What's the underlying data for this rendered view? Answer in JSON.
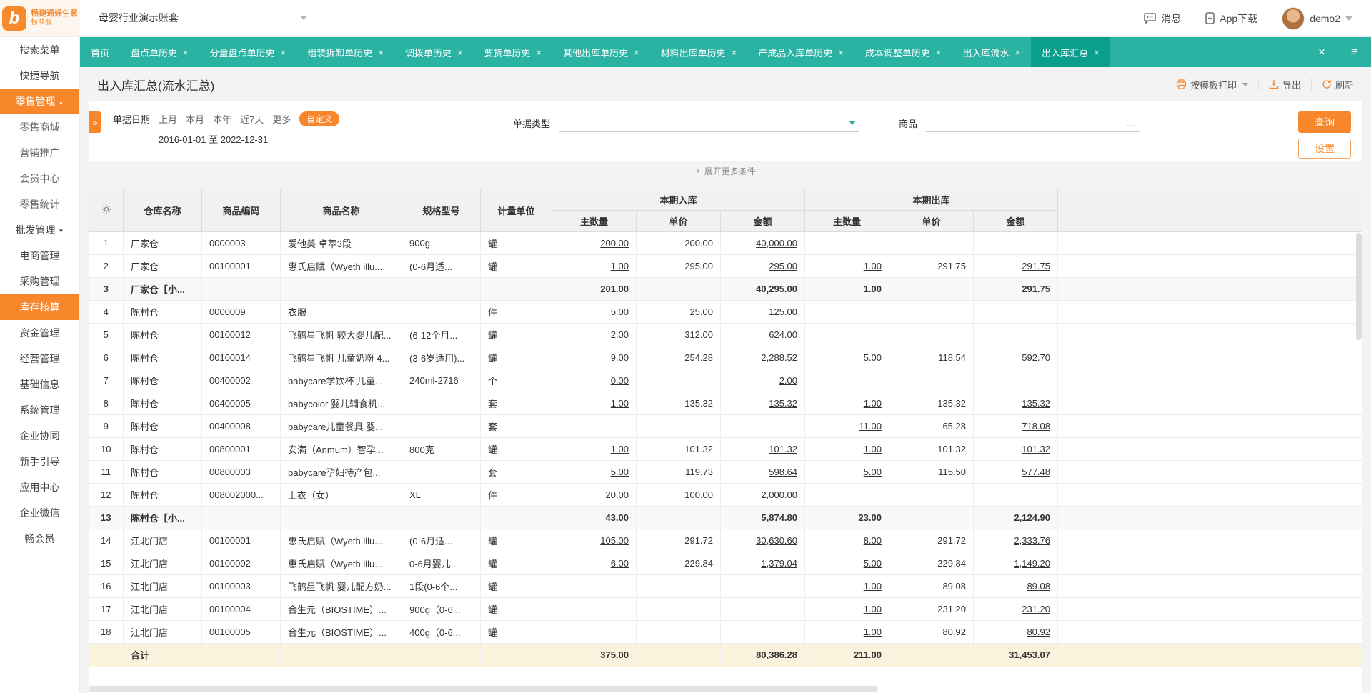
{
  "colors": {
    "teal": "#2ab3a3",
    "teal_active": "#0a9e8d",
    "orange": "#f8862b",
    "total_row_bg": "#fcf3df"
  },
  "glyphs": {
    "close": "×",
    "menu": "≡",
    "chevrons_right": "»",
    "chevrons_left": "«",
    "ellipsis": "…",
    "caret_up": "▲",
    "caret_down": "▼"
  },
  "header": {
    "logo_title": "畅捷通好生意",
    "logo_sub": "标准版",
    "logo_letter": "b",
    "account": "母婴行业演示账套",
    "messages": "消息",
    "app_download": "App下载",
    "user": "demo2"
  },
  "sidebar": {
    "items": [
      {
        "id": "search-menu",
        "label": "搜索菜单"
      },
      {
        "id": "quick-nav",
        "label": "快捷导航"
      },
      {
        "id": "retail-mgmt",
        "label": "零售管理",
        "style": "active",
        "caret": "up"
      },
      {
        "id": "retail-mall",
        "label": "零售商城",
        "style": "sub"
      },
      {
        "id": "marketing",
        "label": "营销推广",
        "style": "sub"
      },
      {
        "id": "member-center",
        "label": "会员中心",
        "style": "sub"
      },
      {
        "id": "retail-stats",
        "label": "零售统计",
        "style": "sub"
      },
      {
        "id": "wholesale-mgmt",
        "label": "批发管理",
        "caret": "down"
      },
      {
        "id": "ecommerce-mgmt",
        "label": "电商管理"
      },
      {
        "id": "purchase-mgmt",
        "label": "采购管理"
      },
      {
        "id": "inventory-accounting",
        "label": "库存核算",
        "style": "active"
      },
      {
        "id": "funds-mgmt",
        "label": "资金管理"
      },
      {
        "id": "operation-mgmt",
        "label": "经营管理"
      },
      {
        "id": "basic-info",
        "label": "基础信息"
      },
      {
        "id": "system-mgmt",
        "label": "系统管理"
      },
      {
        "id": "enterprise-collab",
        "label": "企业协同"
      },
      {
        "id": "newbie-guide",
        "label": "新手引导"
      },
      {
        "id": "app-center",
        "label": "应用中心"
      },
      {
        "id": "enterprise-wechat",
        "label": "企业微信"
      },
      {
        "id": "chang-member",
        "label": "畅会员"
      }
    ]
  },
  "tabs": [
    {
      "label": "首页",
      "closable": false
    },
    {
      "label": "盘点单历史",
      "closable": true
    },
    {
      "label": "分量盘点单历史",
      "closable": true
    },
    {
      "label": "组装拆卸单历史",
      "closable": true
    },
    {
      "label": "调拨单历史",
      "closable": true
    },
    {
      "label": "要货单历史",
      "closable": true
    },
    {
      "label": "其他出库单历史",
      "closable": true
    },
    {
      "label": "材料出库单历史",
      "closable": true
    },
    {
      "label": "产成品入库单历史",
      "closable": true
    },
    {
      "label": "成本调整单历史",
      "closable": true
    },
    {
      "label": "出入库流水",
      "closable": true
    },
    {
      "label": "出入库汇总",
      "closable": true,
      "active": true
    }
  ],
  "page": {
    "title": "出入库汇总(流水汇总)",
    "actions": {
      "print": "按模板打印",
      "export": "导出",
      "refresh": "刷新"
    }
  },
  "filters": {
    "date_label": "单据日期",
    "quick": [
      "上月",
      "本月",
      "本年",
      "近7天",
      "更多"
    ],
    "custom_badge": "自定义",
    "date_range": "2016-01-01 至 2022-12-31",
    "doc_type_label": "单据类型",
    "product_label": "商品",
    "query_button": "查询",
    "setting_button": "设置",
    "expand_more": "展开更多条件"
  },
  "table": {
    "columns": {
      "warehouse": "仓库名称",
      "code": "商品编码",
      "name": "商品名称",
      "spec": "规格型号",
      "unit": "计量单位",
      "group_in": "本期入库",
      "group_out": "本期出库",
      "qty": "主数量",
      "price": "单价",
      "amount": "金额"
    },
    "rows": [
      {
        "idx": "1",
        "wh": "厂家仓",
        "code": "0000003",
        "name": "爱他美 卓萃3段",
        "spec": "900g",
        "unit": "罐",
        "in_qty": "200.00",
        "in_price": "200.00",
        "in_amt": "40,000.00",
        "out_qty": "",
        "out_price": "",
        "out_amt": ""
      },
      {
        "idx": "2",
        "wh": "厂家仓",
        "code": "00100001",
        "name": "惠氏启赋（Wyeth illu...",
        "spec": "(0-6月适...",
        "unit": "罐",
        "in_qty": "1.00",
        "in_price": "295.00",
        "in_amt": "295.00",
        "out_qty": "1.00",
        "out_price": "291.75",
        "out_amt": "291.75"
      },
      {
        "idx": "3",
        "type": "subtotal",
        "wh": "厂家仓【小...",
        "code": "",
        "name": "",
        "spec": "",
        "unit": "",
        "in_qty": "201.00",
        "in_price": "",
        "in_amt": "40,295.00",
        "out_qty": "1.00",
        "out_price": "",
        "out_amt": "291.75"
      },
      {
        "idx": "4",
        "wh": "陈村仓",
        "code": "0000009",
        "name": "衣服",
        "spec": "",
        "unit": "件",
        "in_qty": "5.00",
        "in_price": "25.00",
        "in_amt": "125.00",
        "out_qty": "",
        "out_price": "",
        "out_amt": ""
      },
      {
        "idx": "5",
        "wh": "陈村仓",
        "code": "00100012",
        "name": "飞鹤星飞帆 较大婴儿配...",
        "spec": "(6-12个月...",
        "unit": "罐",
        "in_qty": "2.00",
        "in_price": "312.00",
        "in_amt": "624.00",
        "out_qty": "",
        "out_price": "",
        "out_amt": ""
      },
      {
        "idx": "6",
        "wh": "陈村仓",
        "code": "00100014",
        "name": "飞鹤星飞帆 儿童奶粉 4...",
        "spec": "(3-6岁适用)...",
        "unit": "罐",
        "in_qty": "9.00",
        "in_price": "254.28",
        "in_amt": "2,288.52",
        "out_qty": "5.00",
        "out_price": "118.54",
        "out_amt": "592.70"
      },
      {
        "idx": "7",
        "wh": "陈村仓",
        "code": "00400002",
        "name": "babycare学饮杯 儿童...",
        "spec": "240ml-2716",
        "unit": "个",
        "in_qty": "0.00",
        "in_price": "",
        "in_amt": "2.00",
        "out_qty": "",
        "out_price": "",
        "out_amt": ""
      },
      {
        "idx": "8",
        "wh": "陈村仓",
        "code": "00400005",
        "name": "babycolor 婴儿辅食机...",
        "spec": "",
        "unit": "套",
        "in_qty": "1.00",
        "in_price": "135.32",
        "in_amt": "135.32",
        "out_qty": "1.00",
        "out_price": "135.32",
        "out_amt": "135.32"
      },
      {
        "idx": "9",
        "wh": "陈村仓",
        "code": "00400008",
        "name": "babycare儿童餐具 婴...",
        "spec": "",
        "unit": "套",
        "in_qty": "",
        "in_price": "",
        "in_amt": "",
        "out_qty": "11.00",
        "out_price": "65.28",
        "out_amt": "718.08"
      },
      {
        "idx": "10",
        "wh": "陈村仓",
        "code": "00800001",
        "name": "安满（Anmum）智孕...",
        "spec": "800克",
        "unit": "罐",
        "in_qty": "1.00",
        "in_price": "101.32",
        "in_amt": "101.32",
        "out_qty": "1.00",
        "out_price": "101.32",
        "out_amt": "101.32"
      },
      {
        "idx": "11",
        "wh": "陈村仓",
        "code": "00800003",
        "name": "babycare孕妇待产包...",
        "spec": "",
        "unit": "套",
        "in_qty": "5.00",
        "in_price": "119.73",
        "in_amt": "598.64",
        "out_qty": "5.00",
        "out_price": "115.50",
        "out_amt": "577.48"
      },
      {
        "idx": "12",
        "wh": "陈村仓",
        "code": "008002000...",
        "name": "上衣（女）",
        "spec": "XL",
        "unit": "件",
        "in_qty": "20.00",
        "in_price": "100.00",
        "in_amt": "2,000.00",
        "out_qty": "",
        "out_price": "",
        "out_amt": ""
      },
      {
        "idx": "13",
        "type": "subtotal",
        "wh": "陈村仓【小...",
        "code": "",
        "name": "",
        "spec": "",
        "unit": "",
        "in_qty": "43.00",
        "in_price": "",
        "in_amt": "5,874.80",
        "out_qty": "23.00",
        "out_price": "",
        "out_amt": "2,124.90"
      },
      {
        "idx": "14",
        "wh": "江北门店",
        "code": "00100001",
        "name": "惠氏启赋（Wyeth illu...",
        "spec": "(0-6月适...",
        "unit": "罐",
        "in_qty": "105.00",
        "in_price": "291.72",
        "in_amt": "30,630.60",
        "out_qty": "8.00",
        "out_price": "291.72",
        "out_amt": "2,333.76"
      },
      {
        "idx": "15",
        "wh": "江北门店",
        "code": "00100002",
        "name": "惠氏启赋（Wyeth illu...",
        "spec": "0-6月婴儿...",
        "unit": "罐",
        "in_qty": "6.00",
        "in_price": "229.84",
        "in_amt": "1,379.04",
        "out_qty": "5.00",
        "out_price": "229.84",
        "out_amt": "1,149.20"
      },
      {
        "idx": "16",
        "wh": "江北门店",
        "code": "00100003",
        "name": "飞鹤星飞帆 婴儿配方奶...",
        "spec": "1段(0-6个...",
        "unit": "罐",
        "in_qty": "",
        "in_price": "",
        "in_amt": "",
        "out_qty": "1.00",
        "out_price": "89.08",
        "out_amt": "89.08"
      },
      {
        "idx": "17",
        "wh": "江北门店",
        "code": "00100004",
        "name": "合生元（BIOSTIME）...",
        "spec": "900g（0-6...",
        "unit": "罐",
        "in_qty": "",
        "in_price": "",
        "in_amt": "",
        "out_qty": "1.00",
        "out_price": "231.20",
        "out_amt": "231.20"
      },
      {
        "idx": "18",
        "wh": "江北门店",
        "code": "00100005",
        "name": "合生元（BIOSTIME）...",
        "spec": "400g（0-6...",
        "unit": "罐",
        "in_qty": "",
        "in_price": "",
        "in_amt": "",
        "out_qty": "1.00",
        "out_price": "80.92",
        "out_amt": "80.92"
      }
    ],
    "footer": {
      "label": "合计",
      "in_qty": "375.00",
      "in_amt": "80,386.28",
      "out_qty": "211.00",
      "out_amt": "31,453.07"
    }
  }
}
